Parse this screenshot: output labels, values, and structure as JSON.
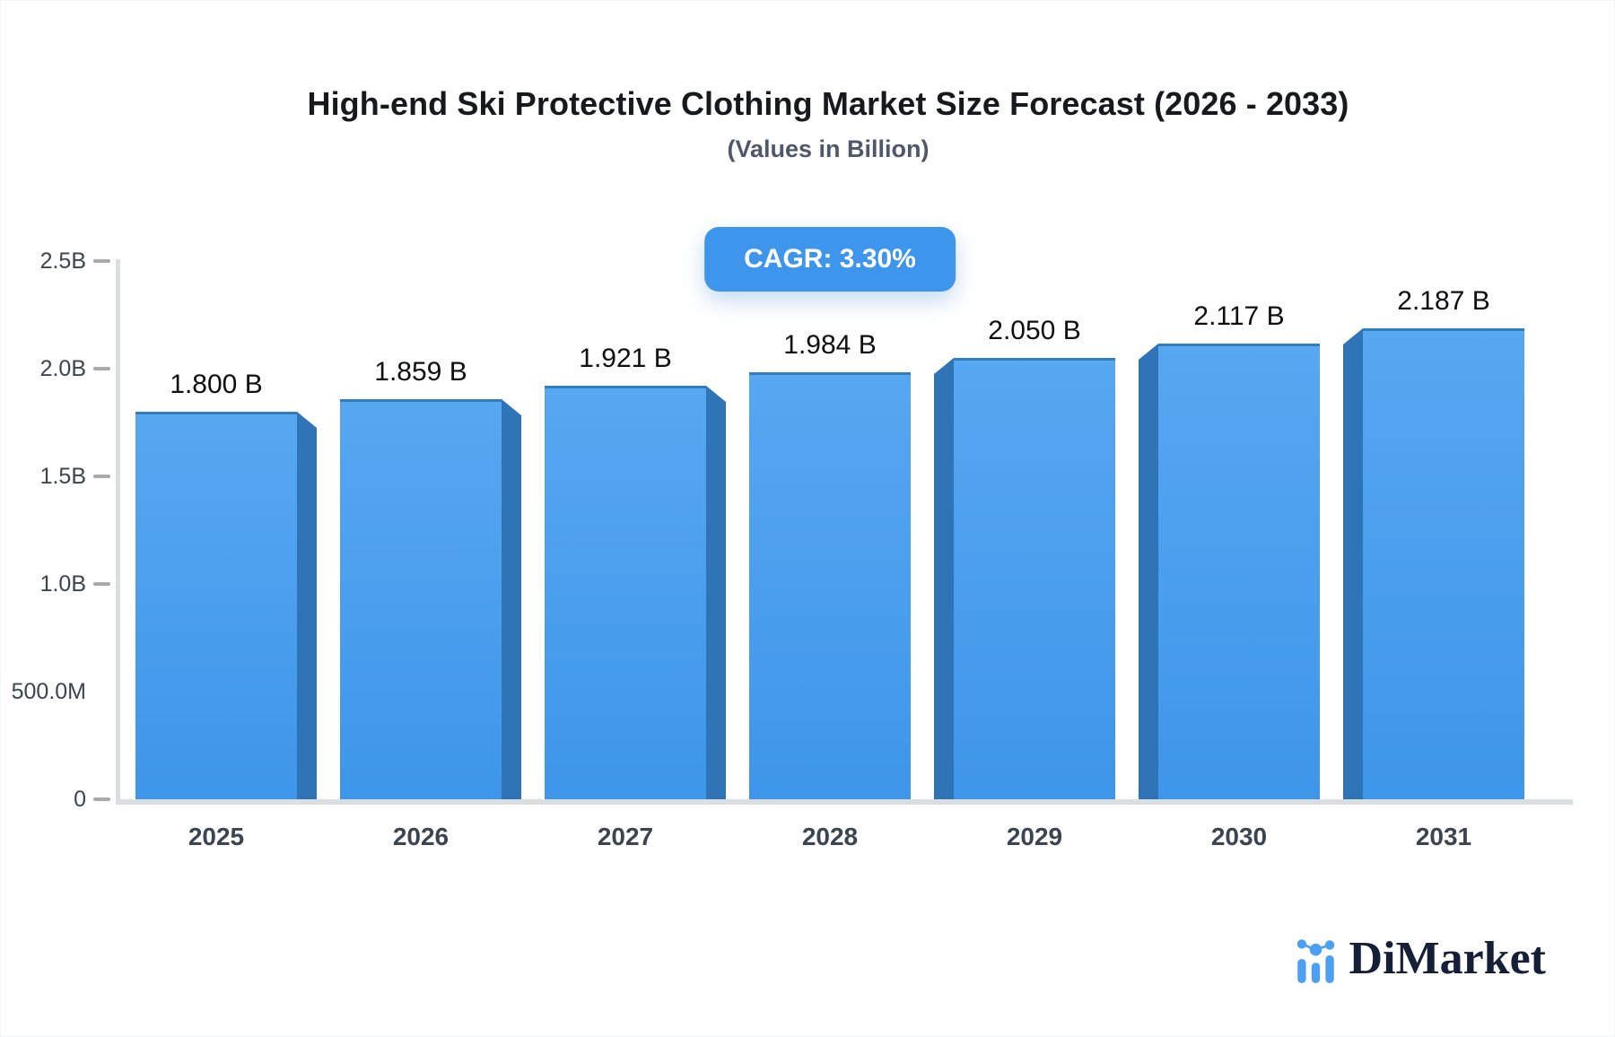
{
  "chart_data": {
    "type": "bar",
    "title": "High-end Ski Protective Clothing Market Size Forecast (2026 - 2033)",
    "subtitle": "(Values in Billion)",
    "cagr_label": "CAGR: 3.30%",
    "categories": [
      "2025",
      "2026",
      "2027",
      "2028",
      "2029",
      "2030",
      "2031"
    ],
    "values": [
      1.8,
      1.859,
      1.921,
      1.984,
      2.05,
      2.117,
      2.187
    ],
    "value_labels": [
      "1.800 B",
      "1.859 B",
      "1.921 B",
      "1.984 B",
      "2.050 B",
      "2.117 B",
      "2.187 B"
    ],
    "unit": "B",
    "ylim": [
      0,
      2.5
    ],
    "y_axis": [
      {
        "label": "2.5B",
        "tick": true
      },
      {
        "label": "2.0B",
        "tick": true
      },
      {
        "label": "1.5B",
        "tick": true
      },
      {
        "label": "1.0B",
        "tick": true
      },
      {
        "label": "500.0M",
        "tick": false
      },
      {
        "label": "0",
        "tick": true
      }
    ],
    "grid": false,
    "legend": "none",
    "bar_style": "3d-bevel",
    "colors": {
      "bar_face_top": "#57A7F1",
      "bar_face_bottom": "#3E96EA",
      "bar_top_edge": "#2F7DC2",
      "bar_side": "#2E74B6",
      "badge_bg": "#3E96EC",
      "badge_text": "#FFFFFF",
      "axis_line": "#DBDEE1",
      "tick": "#A6ABB1",
      "title_text": "#17191C",
      "subtitle_text": "#4E586A",
      "axis_label": "#3B4552",
      "value_label": "#0E0F11",
      "logo_blue": "#4C9FF2",
      "logo_navy": "#152038"
    }
  },
  "logo": {
    "text": "DiMarket"
  }
}
